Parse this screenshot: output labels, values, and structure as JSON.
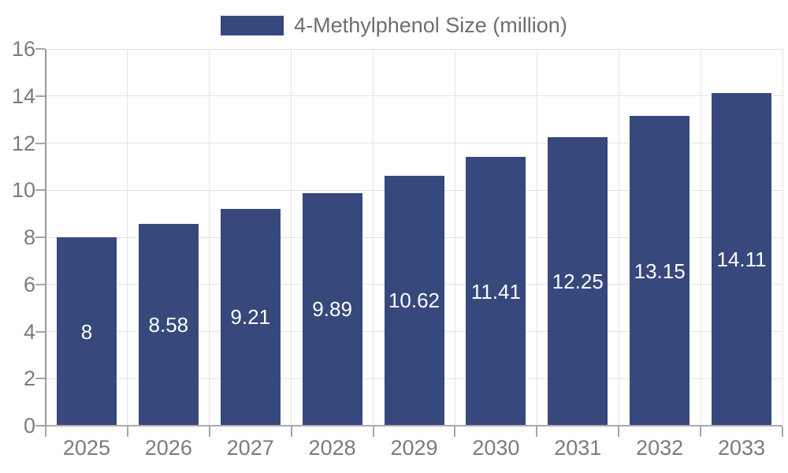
{
  "legend": {
    "label": "4-Methylphenol Size (million)"
  },
  "chart_data": {
    "type": "bar",
    "title": "",
    "xlabel": "",
    "ylabel": "",
    "categories": [
      "2025",
      "2026",
      "2027",
      "2028",
      "2029",
      "2030",
      "2031",
      "2032",
      "2033"
    ],
    "series": [
      {
        "name": "4-Methylphenol Size (million)",
        "values": [
          8,
          8.58,
          9.21,
          9.89,
          10.62,
          11.41,
          12.25,
          13.15,
          14.11
        ]
      }
    ],
    "value_labels": [
      "8",
      "8.58",
      "9.21",
      "9.89",
      "10.62",
      "11.41",
      "12.25",
      "13.15",
      "14.11"
    ],
    "ylim": [
      0,
      16
    ],
    "ytick_step": 2,
    "ytick_labels": [
      "0",
      "2",
      "4",
      "6",
      "8",
      "10",
      "12",
      "14",
      "16"
    ],
    "grid": true,
    "legend_position": "top-center",
    "colors": {
      "bar": "#37487D",
      "grid": "#E3E3E3",
      "x_axis_line": "#ABABAB",
      "y_axis_line": "#999999",
      "tick": "#A6A6A6",
      "axis_text": "#7B7B7B",
      "legend_text": "#6E6E6E",
      "value_text": "#FFFFFF",
      "background": "#FFFFFF"
    }
  }
}
